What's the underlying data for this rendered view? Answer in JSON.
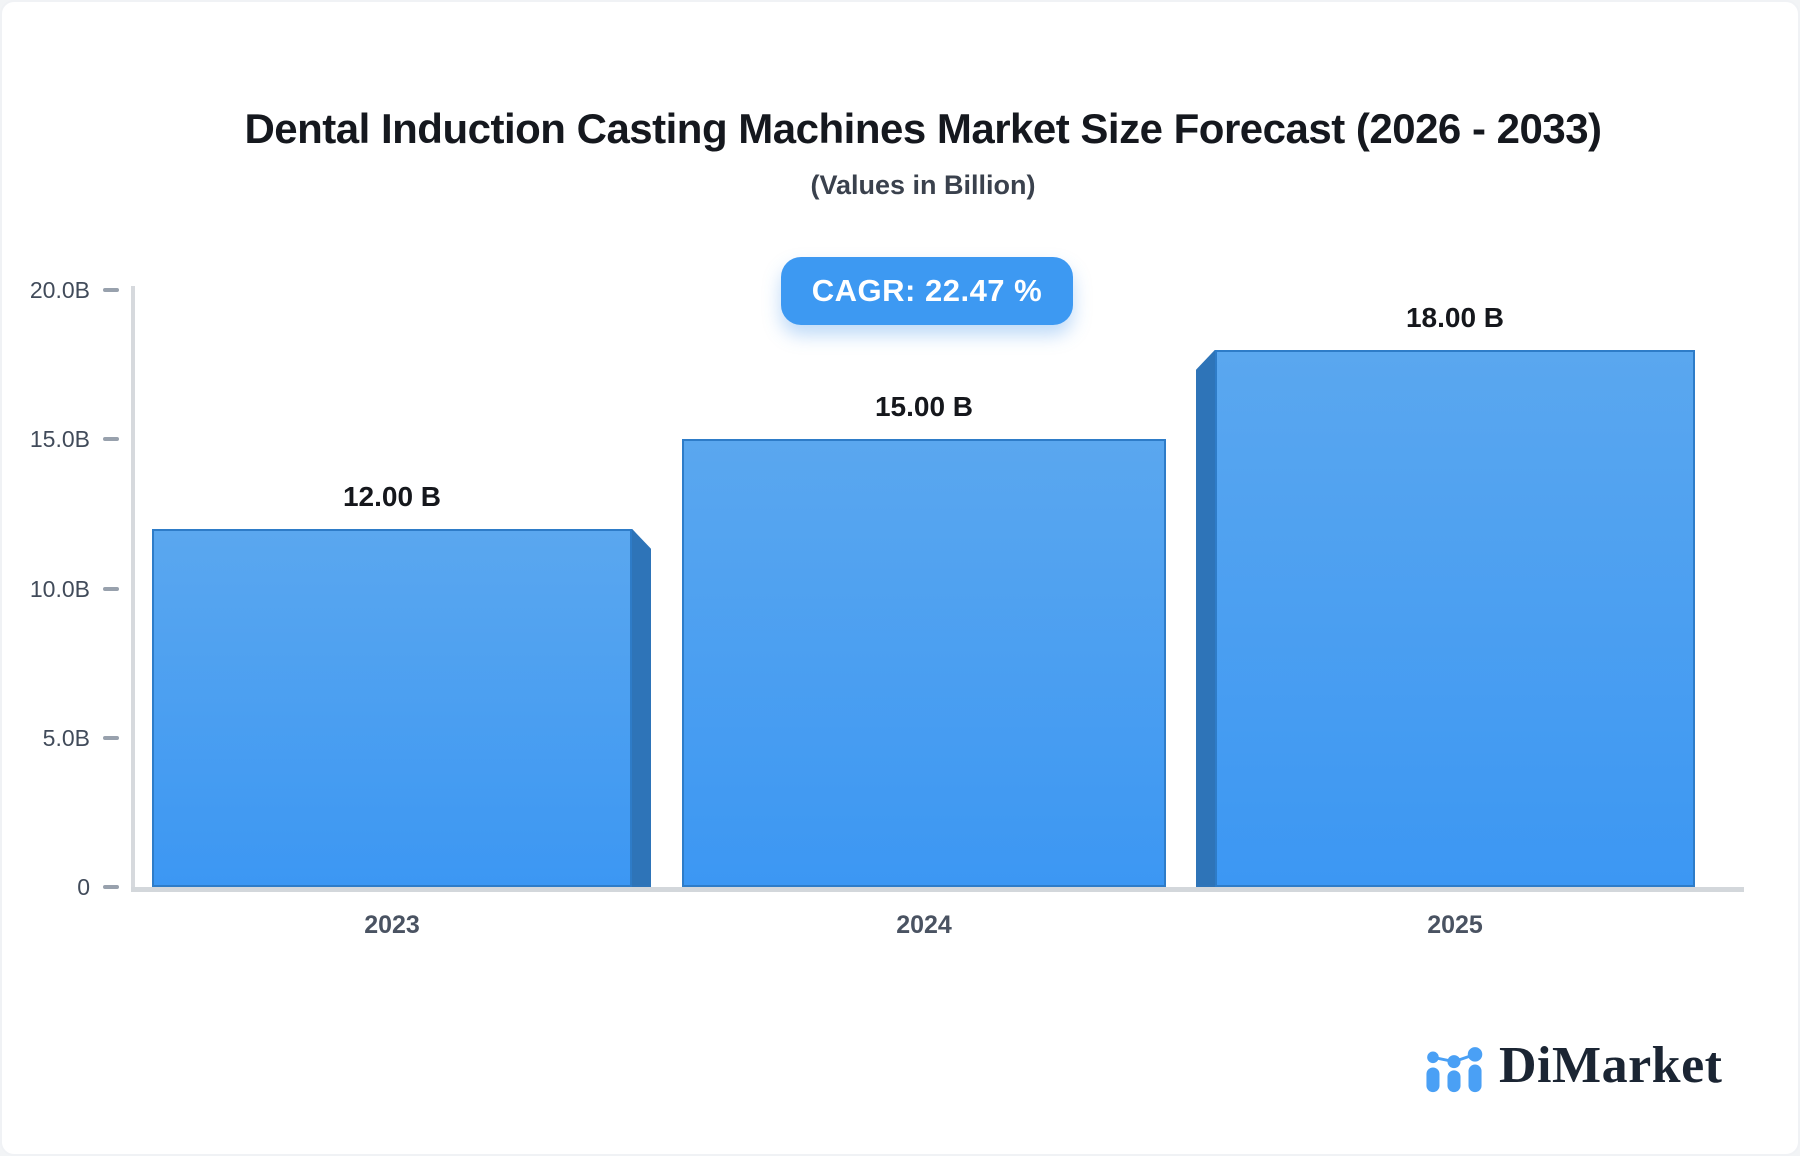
{
  "header": {
    "title": "Dental Induction Casting Machines Market Size Forecast (2026 - 2033)",
    "subtitle": "(Values in Billion)",
    "cagr_label": "CAGR: 22.47 %"
  },
  "chart_data": {
    "type": "bar",
    "title": "Dental Induction Casting Machines Market Size Forecast (2026 - 2033)",
    "subtitle": "(Values in Billion)",
    "unit": "Billion",
    "cagr_percent": 22.47,
    "categories": [
      "2023",
      "2024",
      "2025"
    ],
    "values": [
      12,
      15,
      18
    ],
    "value_labels": [
      "12.00 B",
      "15.00 B",
      "18.00 B"
    ],
    "ylim": [
      0,
      20
    ],
    "yticks": [
      {
        "value": 0,
        "label": "0"
      },
      {
        "value": 5,
        "label": "5.0B"
      },
      {
        "value": 10,
        "label": "10.0B"
      },
      {
        "value": 15,
        "label": "15.0B"
      },
      {
        "value": 20,
        "label": "20.0B"
      }
    ],
    "grid": false,
    "legend": false,
    "bar_colors": {
      "face_top": "#5aa7ef",
      "face_bottom": "#3c97f3",
      "side": "#2e74b8",
      "border": "#2e7cc8"
    }
  },
  "branding": {
    "logo_text": "DiMarket",
    "logo_icon": "mini-bar-chart-icon",
    "icon_color": "#4aa0f5",
    "text_color": "#1b2533"
  },
  "colors": {
    "badge_bg": "#3d99f2",
    "badge_text": "#ffffff",
    "axis_line": "#d5d8dc",
    "tick_dash": "#98a1ad",
    "axis_label": "#434c5b",
    "title_text": "#15181e"
  }
}
